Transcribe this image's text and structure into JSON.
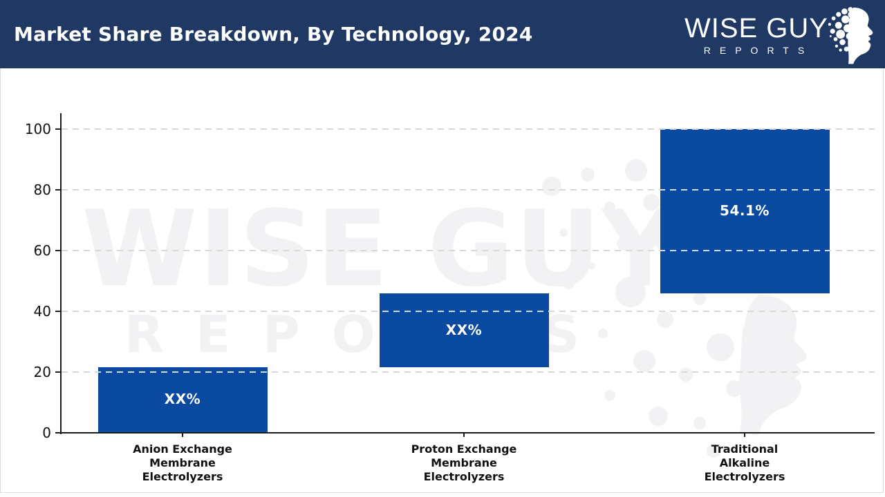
{
  "header": {
    "title": "Market Share Breakdown, By Technology, 2024",
    "bg_color": "#1f3864"
  },
  "logo": {
    "line1": "WISE GUY",
    "line2": "REPORTS"
  },
  "watermark": {
    "line1": "WISE GUY",
    "line2": "REPORTS"
  },
  "chart_data": {
    "type": "bar",
    "subtype": "stacked-waterfall",
    "title": "Market Share Breakdown, By Technology, 2024",
    "categories": [
      [
        "Anion Exchange",
        "Membrane",
        "Electrolyzers"
      ],
      [
        "Proton Exchange",
        "Membrane",
        "Electrolyzers"
      ],
      [
        "Traditional",
        "Alkaline",
        "Electrolyzers"
      ]
    ],
    "bars": [
      {
        "label": "XX%",
        "start": 0,
        "end": 21.6
      },
      {
        "label": "XX%",
        "start": 21.6,
        "end": 45.9
      },
      {
        "label": "54.1%",
        "start": 45.9,
        "end": 100
      }
    ],
    "ylim": [
      0,
      105
    ],
    "yticks": [
      0,
      20,
      40,
      60,
      80,
      100
    ],
    "xlabel": "",
    "ylabel": "",
    "legend": "none",
    "grid": {
      "axis": "y",
      "style": "dashed",
      "color": "#d9d9d9",
      "above_bars": true
    },
    "bar_color": "#0b4aa1",
    "axis_color": "#1a1a1a"
  }
}
